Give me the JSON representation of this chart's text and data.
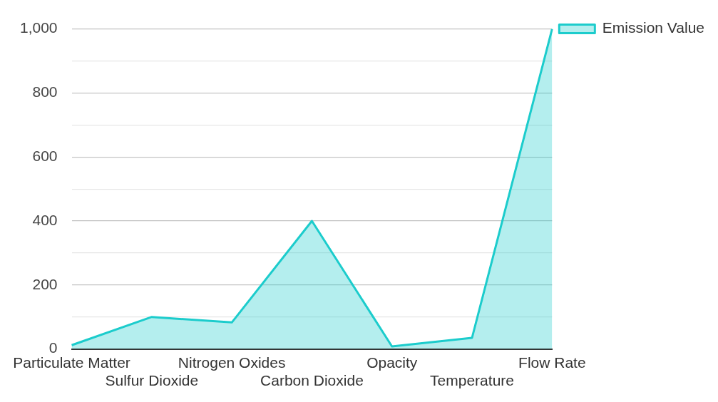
{
  "chart_data": {
    "type": "area",
    "categories": [
      "Particulate Matter",
      "Sulfur Dioxide",
      "Nitrogen Oxides",
      "Carbon Dioxide",
      "Opacity",
      "Temperature",
      "Flow Rate"
    ],
    "series": [
      {
        "name": "Emission Value",
        "color": "#1ccccc",
        "values": [
          12,
          100,
          83,
          400,
          8,
          35,
          1000
        ]
      }
    ],
    "ylim": [
      0,
      1000
    ],
    "yticks": [
      0,
      {
        "value": 100,
        "label": null
      },
      200,
      {
        "value": 300,
        "label": null
      },
      400,
      {
        "value": 500,
        "label": null
      },
      600,
      {
        "value": 700,
        "label": null
      },
      800,
      {
        "value": 900,
        "label": null
      },
      {
        "value": 1000,
        "label": "1,000"
      }
    ],
    "grid": "y",
    "legend": "top right",
    "marker": "none"
  }
}
